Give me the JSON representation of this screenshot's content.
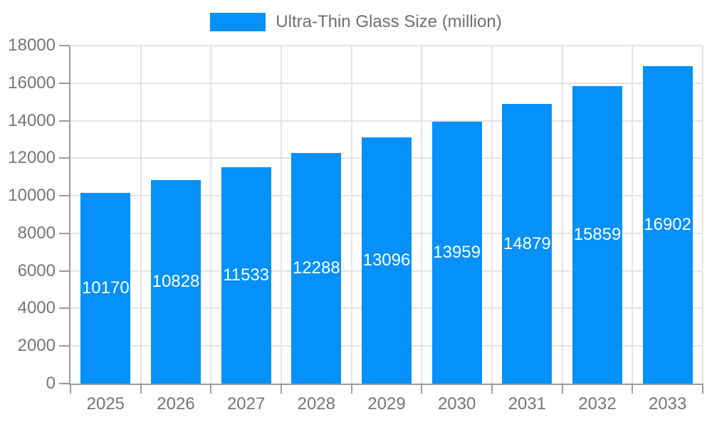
{
  "chart_data": {
    "type": "bar",
    "title": "",
    "legend": "Ultra-Thin Glass Size (million)",
    "legend_position": "top",
    "categories": [
      "2025",
      "2026",
      "2027",
      "2028",
      "2029",
      "2030",
      "2031",
      "2032",
      "2033"
    ],
    "values": [
      10170,
      10828,
      11533,
      12288,
      13096,
      13959,
      14879,
      15859,
      16902
    ],
    "xlabel": "",
    "ylabel": "",
    "ylim": [
      0,
      18000
    ],
    "ytick_step": 2000,
    "grid": true,
    "value_labels": "centered-white-inside-bars",
    "colors": {
      "bar": "#0590fa",
      "value_label": "#ffffff",
      "axis": "#9b9b9b",
      "gridline": "#e4e4e4",
      "text": "#757575"
    }
  }
}
